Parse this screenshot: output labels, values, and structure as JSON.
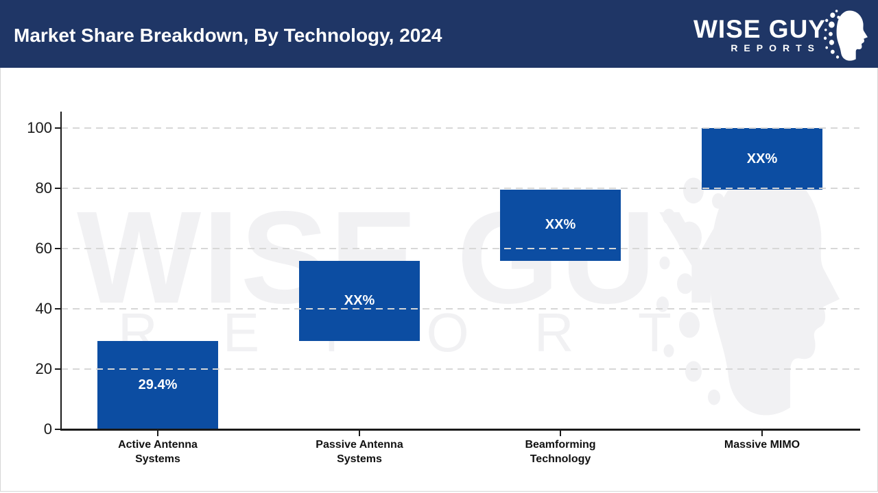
{
  "header": {
    "title": "Market Share Breakdown, By Technology, 2024",
    "logo": {
      "wordmark": "WISE GUY",
      "reports": "REPORTS"
    }
  },
  "watermark": {
    "line1": "WISE GUY",
    "line2": "REPORTS"
  },
  "colors": {
    "header_bg": "#1F3666",
    "bar": "#0C4DA2",
    "bar_label": "#ffffff",
    "gridline": "#d7d7d7",
    "axis": "#1a1a1a",
    "watermark": "#f1f1f3"
  },
  "chart_data": {
    "type": "bar",
    "subtype": "floating-waterfall",
    "title": "Market Share Breakdown, By Technology, 2024",
    "categories": [
      "Active Antenna Systems",
      "Passive Antenna Systems",
      "Beamforming Technology",
      "Massive MIMO"
    ],
    "categories_lines": [
      [
        "Active Antenna",
        "Systems"
      ],
      [
        "Passive Antenna",
        "Systems"
      ],
      [
        "Beamforming",
        "Technology"
      ],
      [
        "Massive MIMO"
      ]
    ],
    "segments": [
      {
        "category": "Active Antenna Systems",
        "start": 0,
        "end": 29.4,
        "label": "29.4%"
      },
      {
        "category": "Passive Antenna Systems",
        "start": 29.4,
        "end": 56,
        "label": "XX%"
      },
      {
        "category": "Beamforming Technology",
        "start": 56,
        "end": 79.5,
        "label": "XX%"
      },
      {
        "category": "Massive MIMO",
        "start": 79.5,
        "end": 100,
        "label": "XX%"
      }
    ],
    "yticks": [
      0,
      20,
      40,
      60,
      80,
      100
    ],
    "ylim": [
      0,
      105.5
    ],
    "xlabel": "",
    "ylabel": "",
    "grid": "horizontal-dashed",
    "legend": "none"
  }
}
